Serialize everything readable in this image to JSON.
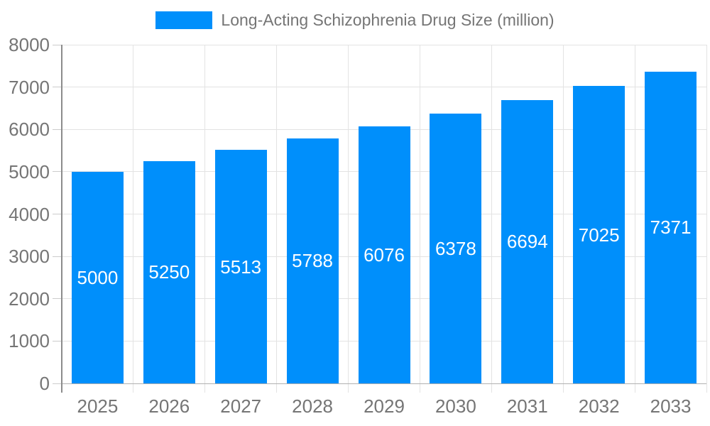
{
  "chart_data": {
    "type": "bar",
    "title": "Long-Acting Schizophrenia Drug Size (million)",
    "categories": [
      "2025",
      "2026",
      "2027",
      "2028",
      "2029",
      "2030",
      "2031",
      "2032",
      "2033"
    ],
    "series": [
      {
        "name": "Long-Acting Schizophrenia Drug Size (million)",
        "values": [
          5000,
          5250,
          5513,
          5788,
          6076,
          6378,
          6694,
          7025,
          7371
        ]
      }
    ],
    "xlabel": "",
    "ylabel": "",
    "ylim": [
      0,
      8000
    ],
    "yticks": [
      0,
      1000,
      2000,
      3000,
      4000,
      5000,
      6000,
      7000,
      8000
    ],
    "grid": true,
    "legend_position": "top",
    "value_labels": "inside-center",
    "colors": {
      "bar": "#008FFB",
      "bar_value_label": "#ffffff",
      "axis_text": "#757575",
      "gridline": "#e3e3e3",
      "axis_line": "#8c8c8c",
      "baseline": "#b0b0b0",
      "tick": "#cccccc",
      "background": "#ffffff"
    }
  }
}
